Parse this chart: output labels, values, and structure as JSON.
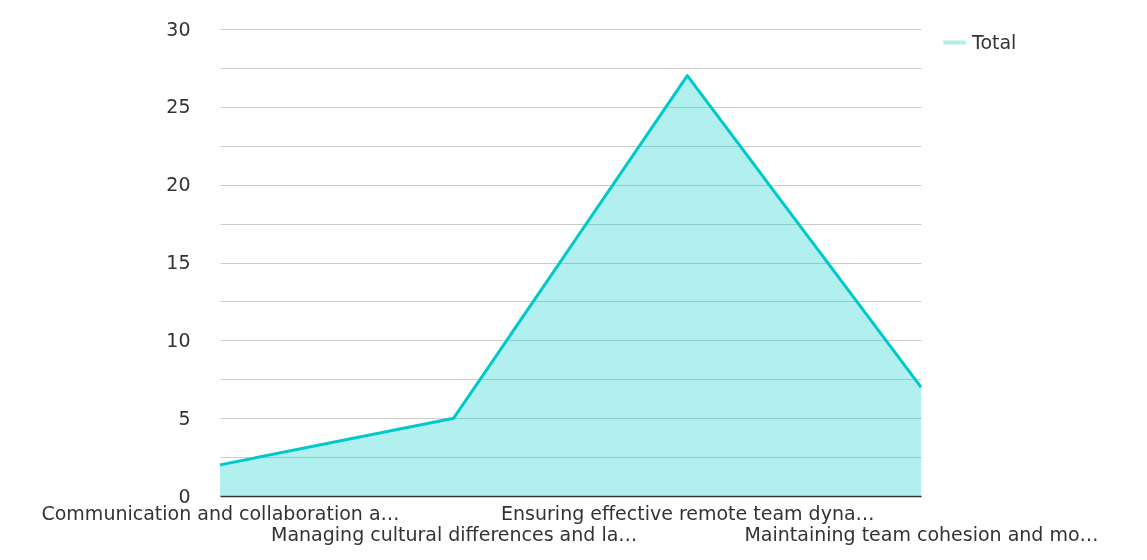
{
  "chart_data": {
    "type": "area",
    "categories": [
      "Communication and collaboration a…",
      "Managing cultural differences and la…",
      "Ensuring effective remote team dyna…",
      "Maintaining team cohesion and mo…"
    ],
    "series": [
      {
        "name": "Total",
        "color": "#00c9c9",
        "values": [
          2,
          5,
          27,
          7
        ]
      }
    ],
    "ylim": [
      0,
      30
    ],
    "yticks": [
      0,
      {
        "value": 2.5,
        "label": null
      },
      5,
      {
        "value": 7.5,
        "label": null
      },
      10,
      {
        "value": 12.5,
        "label": null
      },
      15,
      {
        "value": 17.5,
        "label": null
      },
      20,
      {
        "value": 22.5,
        "label": null
      },
      25,
      {
        "value": 27.5,
        "label": null
      },
      30
    ],
    "grid": true,
    "legend": "top right"
  }
}
